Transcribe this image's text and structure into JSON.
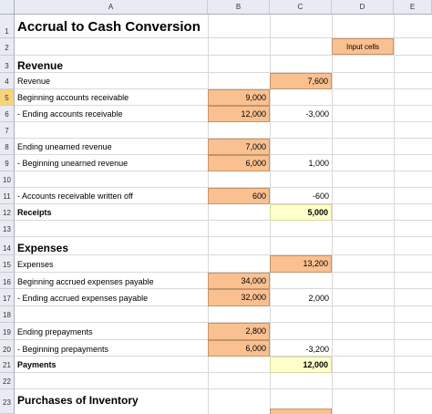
{
  "columns": [
    "A",
    "B",
    "C",
    "D",
    "E"
  ],
  "rows": [
    "1",
    "2",
    "3",
    "4",
    "5",
    "6",
    "7",
    "8",
    "9",
    "10",
    "11",
    "12",
    "13",
    "14",
    "15",
    "16",
    "17",
    "18",
    "19",
    "20",
    "21",
    "22",
    "23"
  ],
  "title": "Accrual to Cash Conversion",
  "legend": "Input cells",
  "revenue": {
    "heading": "Revenue",
    "revenue_label": "Revenue",
    "revenue_value": "7,600",
    "begin_ar_label": "Beginning accounts receivable",
    "begin_ar_value": "9,000",
    "end_ar_label": "- Ending accounts receivable",
    "end_ar_value": "12,000",
    "ar_change": "-3,000",
    "end_unearned_label": "Ending unearned revenue",
    "end_unearned_value": "7,000",
    "begin_unearned_label": "- Beginning unearned revenue",
    "begin_unearned_value": "6,000",
    "unearned_change": "1,000",
    "writeoff_label": "- Accounts receivable written off",
    "writeoff_value": "600",
    "writeoff_change": "-600",
    "receipts_label": "Receipts",
    "receipts_value": "5,000"
  },
  "expenses": {
    "heading": "Expenses",
    "expenses_label": "Expenses",
    "expenses_value": "13,200",
    "begin_accrued_label": "Beginning accrued expenses payable",
    "begin_accrued_value": "34,000",
    "end_accrued_label": "- Ending accrued expenses payable",
    "end_accrued_value": "32,000",
    "accrued_change": "2,000",
    "end_prepay_label": "Ending prepayments",
    "end_prepay_value": "2,800",
    "begin_prepay_label": "- Beginning prepayments",
    "begin_prepay_value": "6,000",
    "prepay_change": "-3,200",
    "payments_label": "Payments",
    "payments_value": "12,000"
  },
  "inventory": {
    "heading": "Purchases of Inventory"
  }
}
